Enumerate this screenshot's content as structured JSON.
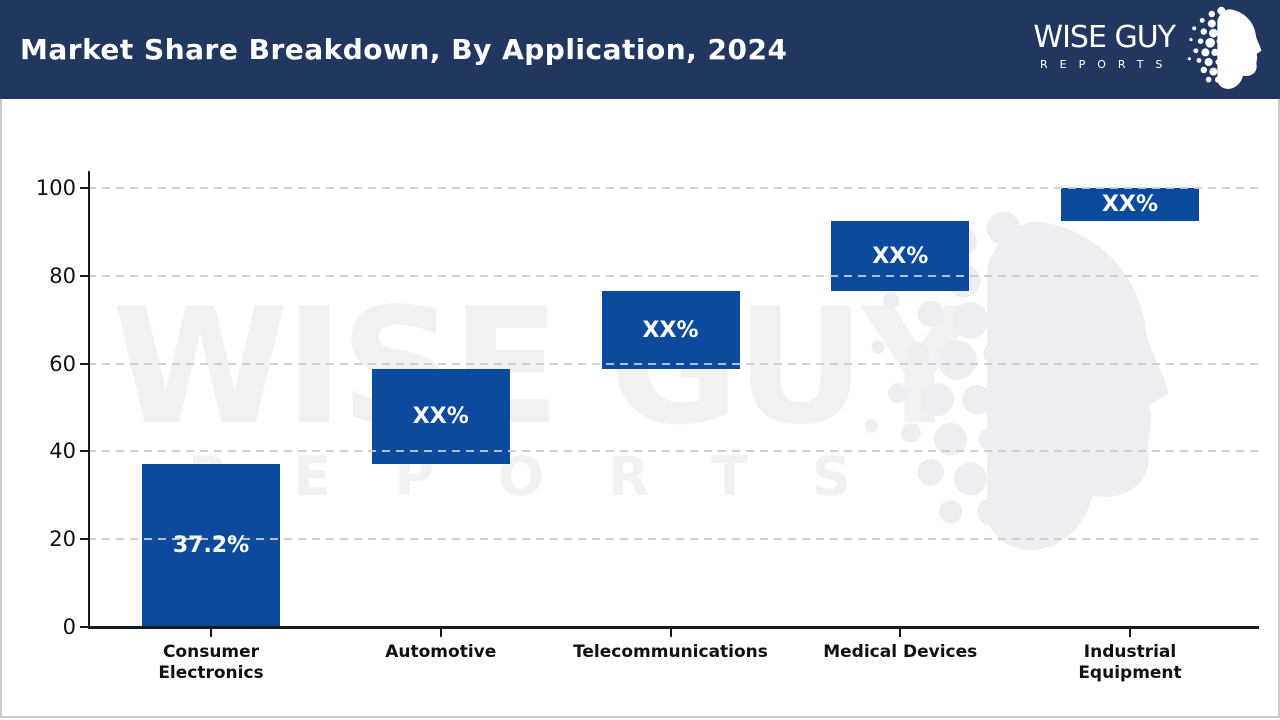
{
  "header": {
    "title": "Market Share Breakdown, By Application, 2024",
    "logo": {
      "line1": "WISE GUY",
      "line2": "REPORTS"
    }
  },
  "watermark": {
    "line1": "WISE GUY",
    "line2": "REPORTS"
  },
  "colors": {
    "header_bg": "#223760",
    "bar": "#0c4a9e",
    "grid": "#cccccc",
    "axis": "#1a1a1a",
    "bar_label_text": "#ffffff",
    "watermark": "#f1f1f4",
    "edge_line": "#c9c9c9"
  },
  "chart_data": {
    "type": "bar",
    "subtype": "waterfall",
    "title": "Market Share Breakdown, By Application, 2024",
    "categories": [
      "Consumer\nElectronics",
      "Automotive",
      "Telecommunications",
      "Medical Devices",
      "Industrial\nEquipment"
    ],
    "segments": [
      {
        "category": "Consumer Electronics",
        "start": 0,
        "end": 37.2,
        "label": "37.2%"
      },
      {
        "category": "Automotive",
        "start": 37.2,
        "end": 58.7,
        "label": "XX%"
      },
      {
        "category": "Telecommunications",
        "start": 58.7,
        "end": 76.5,
        "label": "XX%"
      },
      {
        "category": "Medical Devices",
        "start": 76.5,
        "end": 92.4,
        "label": "XX%"
      },
      {
        "category": "Industrial Equipment",
        "start": 92.4,
        "end": 100,
        "label": "XX%"
      }
    ],
    "yticks": [
      0,
      20,
      40,
      60,
      80,
      100
    ],
    "ylim": [
      0,
      104
    ],
    "xlabel": "",
    "ylabel": "",
    "grid": "dashed-horizontal",
    "legend": "none",
    "values_masked_as": "XX%"
  }
}
